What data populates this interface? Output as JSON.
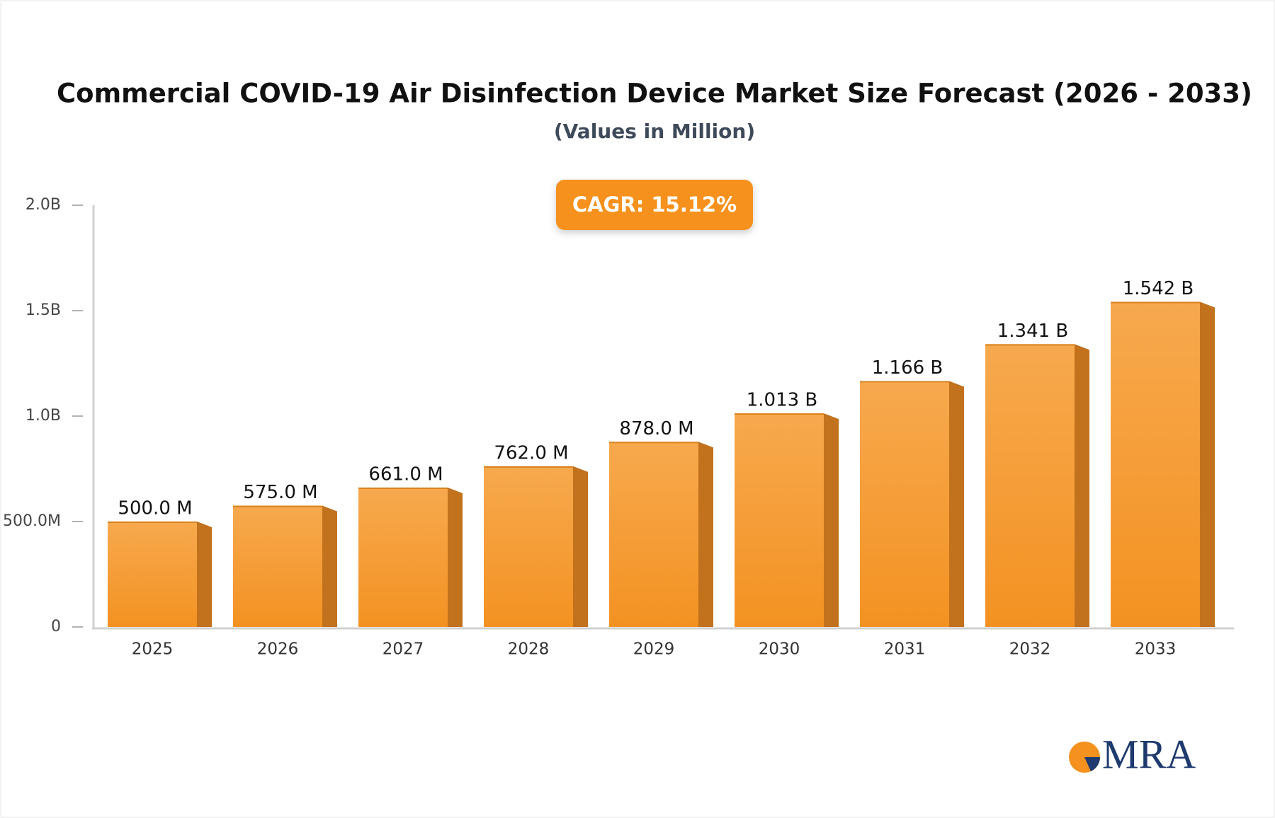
{
  "chart_data": {
    "type": "bar",
    "title": "Commercial COVID-19 Air Disinfection Device Market Size Forecast (2026 - 2033)",
    "subtitle": "(Values in Million)",
    "annotation": "CAGR: 15.12%",
    "logo": "MRA",
    "categories": [
      "2025",
      "2026",
      "2027",
      "2028",
      "2029",
      "2030",
      "2031",
      "2032",
      "2033"
    ],
    "values": [
      500,
      575,
      661,
      762,
      878,
      1013,
      1166,
      1341,
      1542
    ],
    "value_labels": [
      "500.0 M",
      "575.0 M",
      "661.0 M",
      "762.0 M",
      "878.0 M",
      "1.013 B",
      "1.166 B",
      "1.341 B",
      "1.542 B"
    ],
    "color": "#f5a040",
    "ylim": [
      0,
      2000
    ],
    "yticks": [
      0,
      {
        "value": 500,
        "label": "500.0M"
      },
      {
        "value": 1000,
        "label": "1.0B"
      },
      {
        "value": 1500,
        "label": "1.5B"
      },
      {
        "value": 2000,
        "label": "2.0B"
      }
    ],
    "grid": false
  }
}
